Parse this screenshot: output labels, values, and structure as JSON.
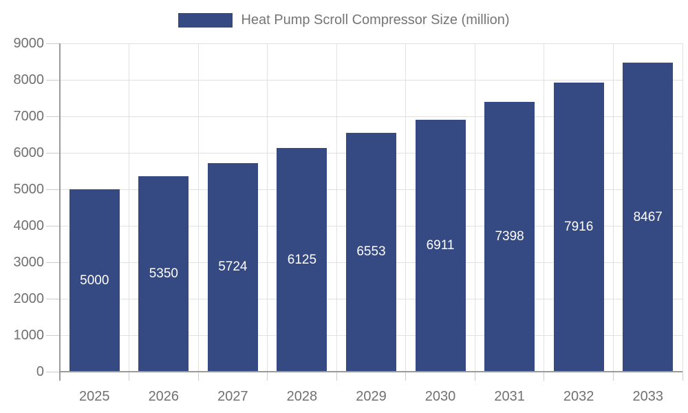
{
  "chart_data": {
    "type": "bar",
    "title": "Heat Pump Scroll Compressor Size (million)",
    "legend": {
      "label": "Heat Pump Scroll Compressor Size (million)",
      "position": "top-center"
    },
    "categories": [
      "2025",
      "2026",
      "2027",
      "2028",
      "2029",
      "2030",
      "2031",
      "2032",
      "2033"
    ],
    "values": [
      5000,
      5350,
      5724,
      6125,
      6553,
      6911,
      7398,
      7916,
      8467
    ],
    "xlabel": "",
    "ylabel": "",
    "ylim": [
      0,
      9000
    ],
    "ytick_step": 1000,
    "grid": true,
    "colors": {
      "bar": "#354983",
      "value_label": "#ffffff",
      "grid": "#e0e0e0",
      "tick": "#cccccc",
      "axis_line": "#9a9a9a",
      "axis_label": "#707070",
      "legend_text": "#757575"
    }
  }
}
